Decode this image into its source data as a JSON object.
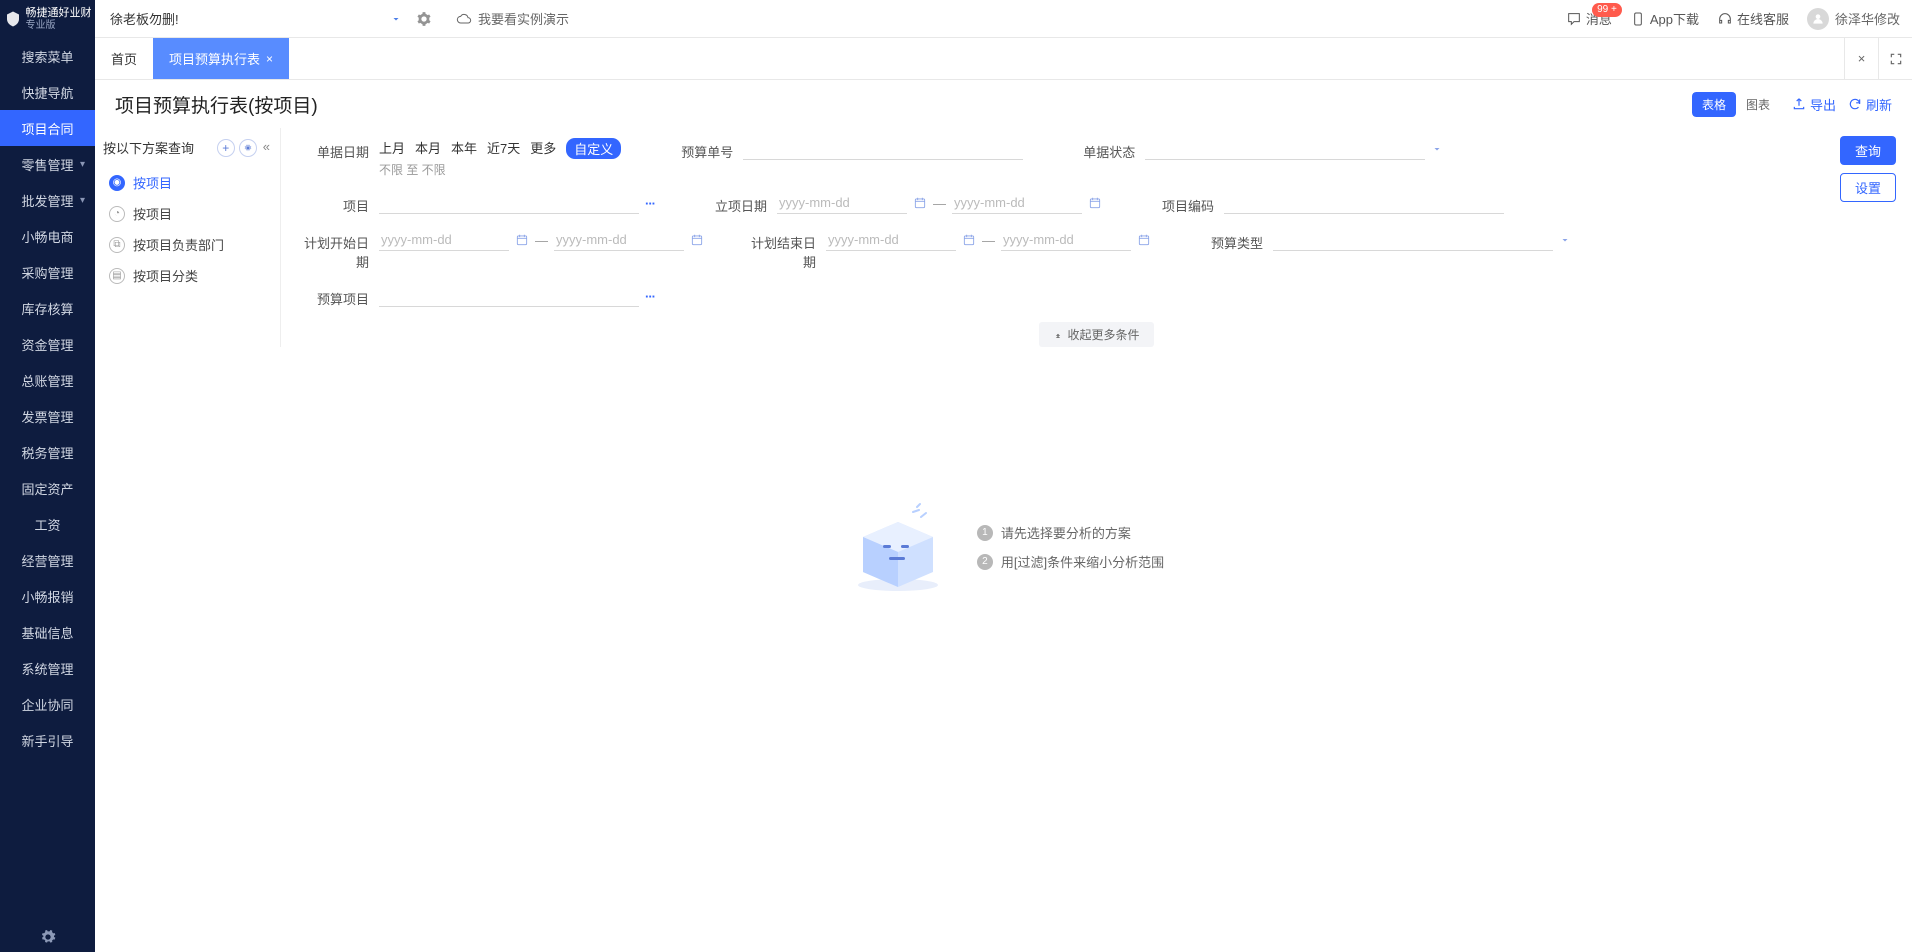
{
  "brand": {
    "name": "畅捷通好业财",
    "edition": "专业版"
  },
  "topbar": {
    "org": "徐老板勿删!",
    "demo": "我要看实例演示",
    "msg": "消息",
    "msg_badge": "99 +",
    "app": "App下载",
    "service": "在线客服",
    "user": "徐泽华修改"
  },
  "sidebar": {
    "items": [
      {
        "label": "搜索菜单"
      },
      {
        "label": "快捷导航"
      },
      {
        "label": "项目合同",
        "active": true
      },
      {
        "label": "零售管理",
        "caret": true
      },
      {
        "label": "批发管理",
        "caret": true
      },
      {
        "label": "小畅电商"
      },
      {
        "label": "采购管理"
      },
      {
        "label": "库存核算"
      },
      {
        "label": "资金管理"
      },
      {
        "label": "总账管理"
      },
      {
        "label": "发票管理"
      },
      {
        "label": "税务管理"
      },
      {
        "label": "固定资产"
      },
      {
        "label": "工资"
      },
      {
        "label": "经营管理"
      },
      {
        "label": "小畅报销"
      },
      {
        "label": "基础信息"
      },
      {
        "label": "系统管理"
      },
      {
        "label": "企业协同"
      },
      {
        "label": "新手引导"
      }
    ]
  },
  "tabs": {
    "home": "首页",
    "active": "项目预算执行表"
  },
  "page": {
    "title": "项目预算执行表(按项目)",
    "seg_table": "表格",
    "seg_chart": "图表",
    "export": "导出",
    "refresh": "刷新"
  },
  "scheme": {
    "header": "按以下方案查询",
    "items": [
      "按项目",
      "按项目",
      "按项目负责部门",
      "按项目分类"
    ]
  },
  "filters": {
    "doc_date": "单据日期",
    "qd": {
      "last_month": "上月",
      "this_month": "本月",
      "this_year": "本年",
      "last7": "近7天",
      "more": "更多",
      "custom": "自定义"
    },
    "qd_sub": "不限 至 不限",
    "budget_no": "预算单号",
    "doc_status": "单据状态",
    "project": "项目",
    "setup_date": "立项日期",
    "project_code": "项目编码",
    "plan_start": "计划开始日期",
    "plan_end": "计划结束日期",
    "budget_type": "预算类型",
    "budget_project": "预算项目",
    "date_ph": "yyyy-mm-dd",
    "sep": "—"
  },
  "actions": {
    "query": "查询",
    "settings": "设置"
  },
  "collapse": "收起更多条件",
  "empty": {
    "s1": "请先选择要分析的方案",
    "s2": "用[过滤]条件来缩小分析范围"
  },
  "colors": {
    "primary": "#3366ff",
    "sidebar_bg": "#0e1c3f",
    "tab_active": "#588cff",
    "badge": "#ff5a4c",
    "text": "#333333",
    "muted": "#999999"
  }
}
